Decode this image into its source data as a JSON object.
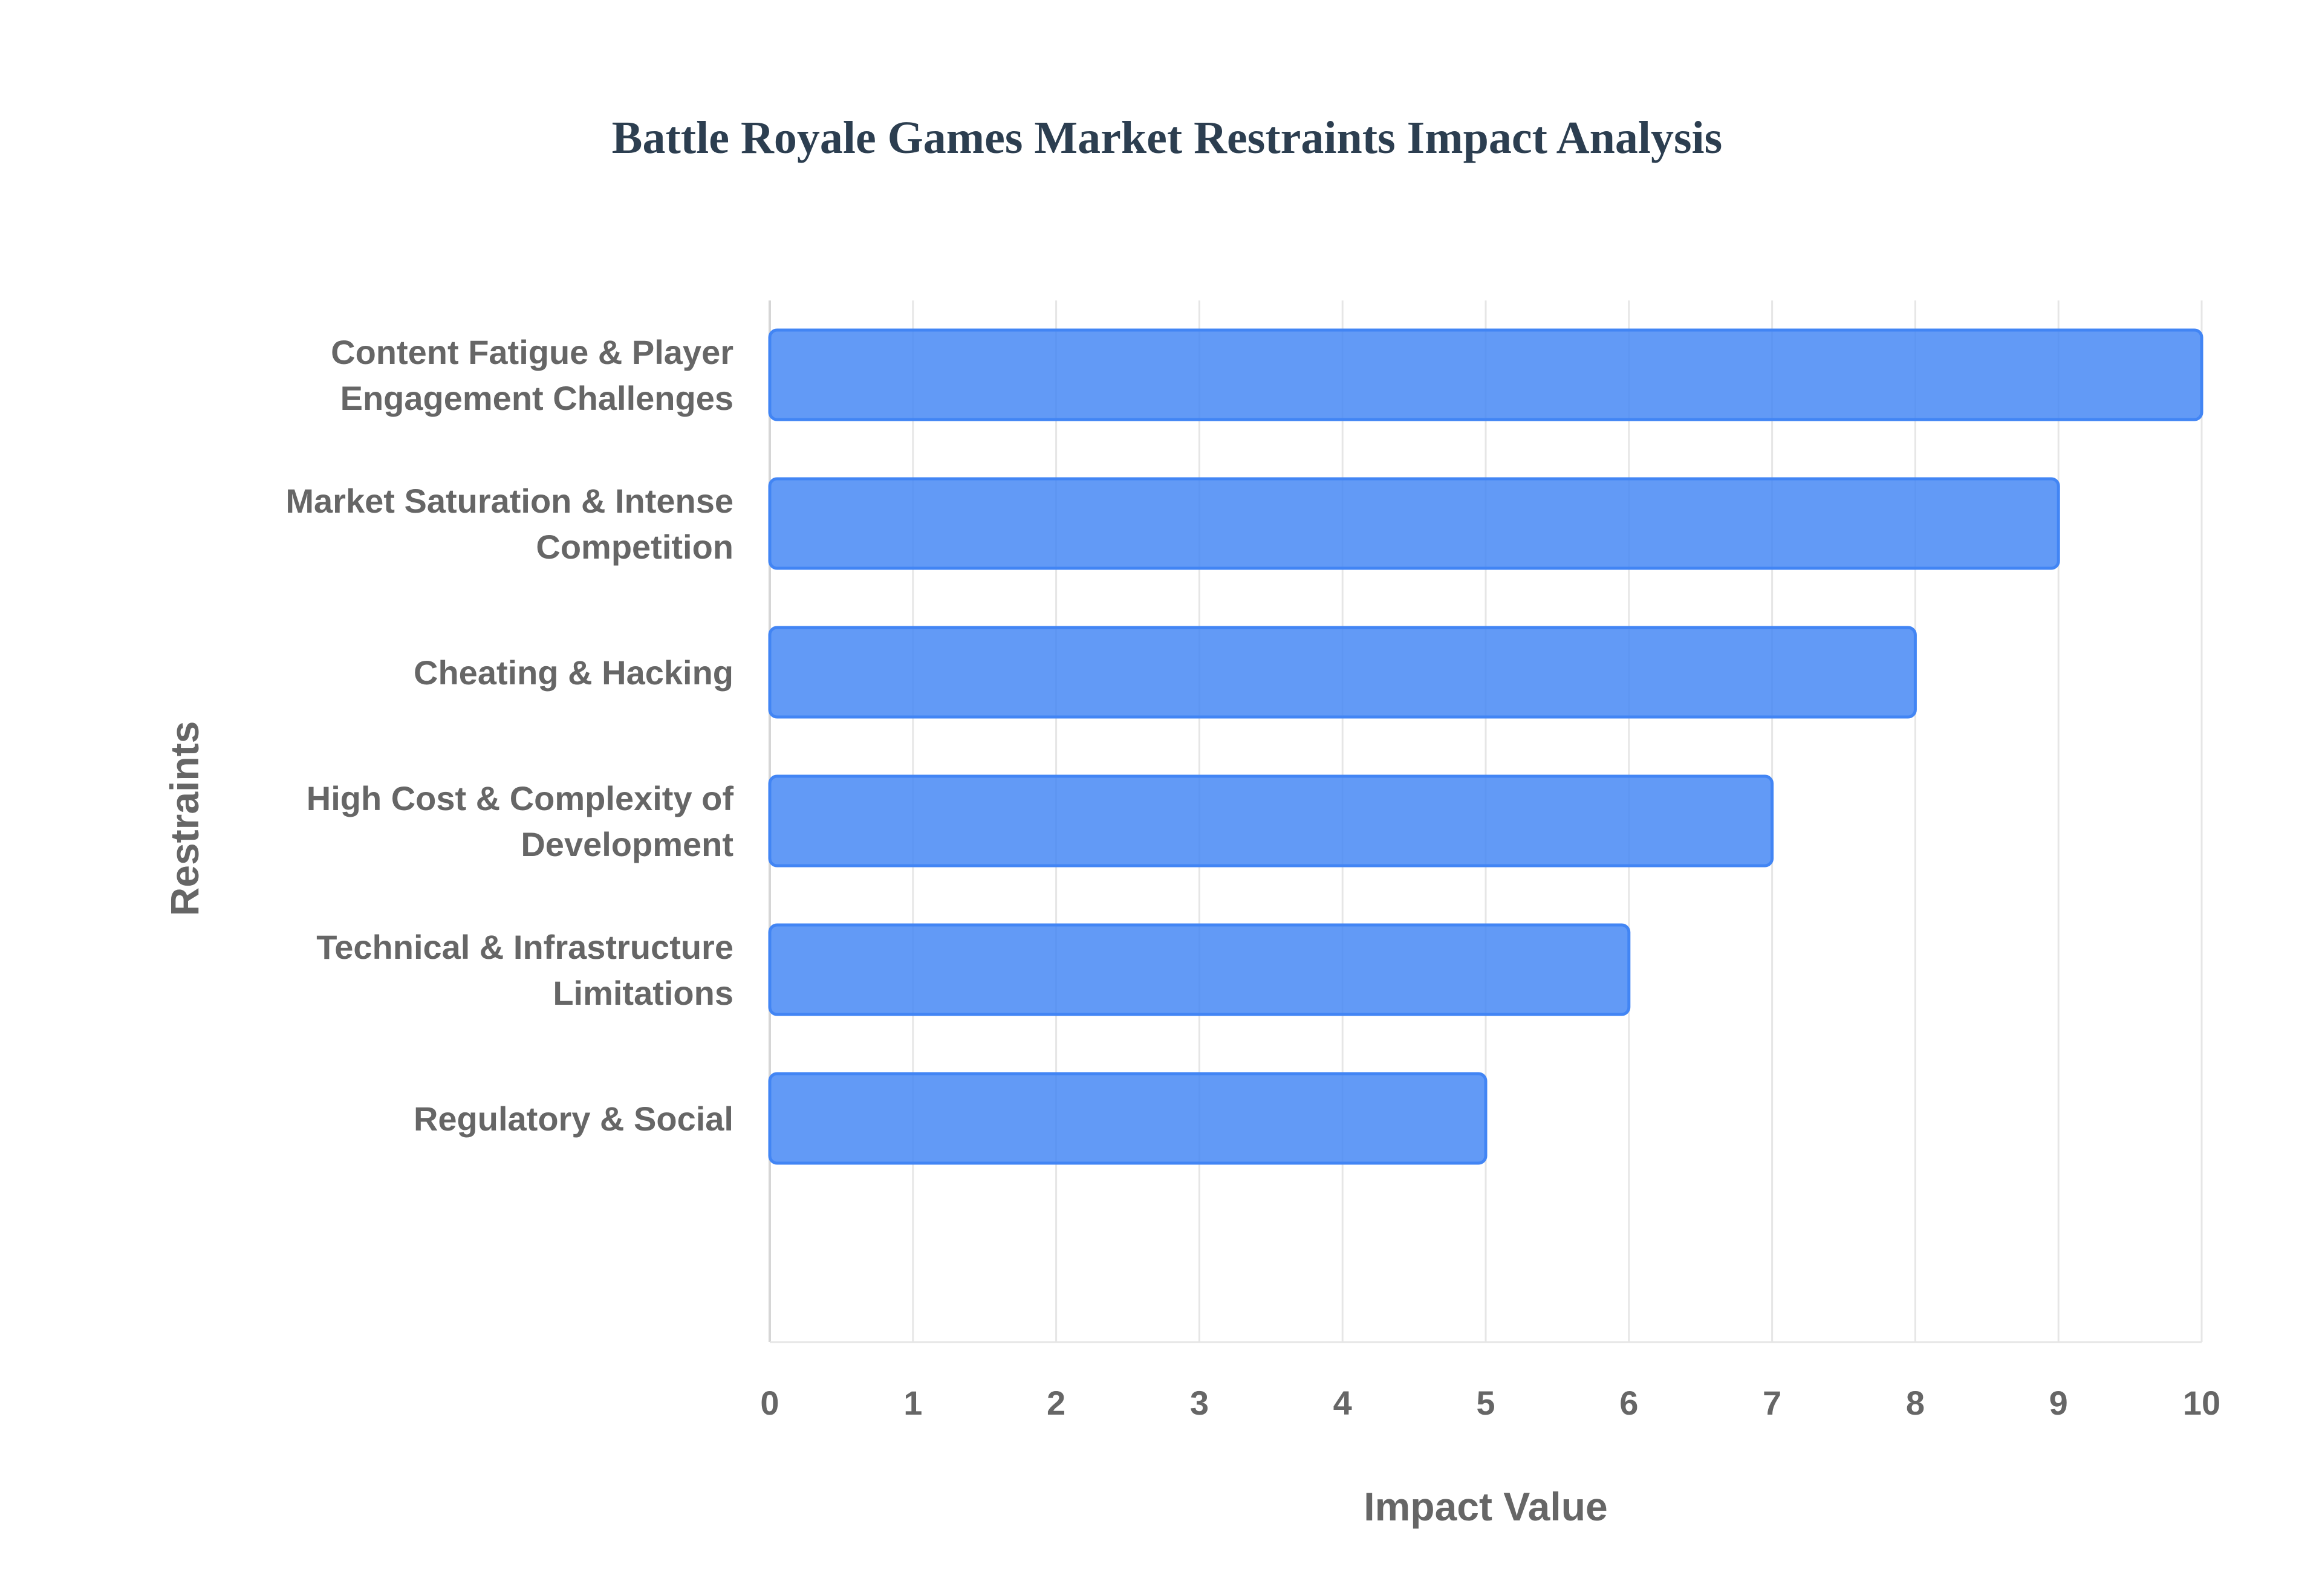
{
  "chart_data": {
    "type": "bar",
    "orientation": "horizontal",
    "title": "Battle Royale Games Market Restraints Impact Analysis",
    "xlabel": "Impact Value",
    "ylabel": "Restraints",
    "xlim": [
      0,
      10
    ],
    "xticks": [
      "0",
      "1",
      "2",
      "3",
      "4",
      "5",
      "6",
      "7",
      "8",
      "9",
      "10"
    ],
    "grid": true,
    "bar_color": "#4285f4",
    "categories": [
      [
        "Content Fatigue & Player",
        "Engagement Challenges"
      ],
      [
        "Market Saturation & Intense",
        "Competition"
      ],
      [
        "Cheating & Hacking"
      ],
      [
        "High Cost & Complexity of",
        "Development"
      ],
      [
        "Technical & Infrastructure",
        "Limitations"
      ],
      [
        "Regulatory & Social"
      ]
    ],
    "values": [
      10,
      9,
      8,
      7,
      6,
      5
    ]
  }
}
